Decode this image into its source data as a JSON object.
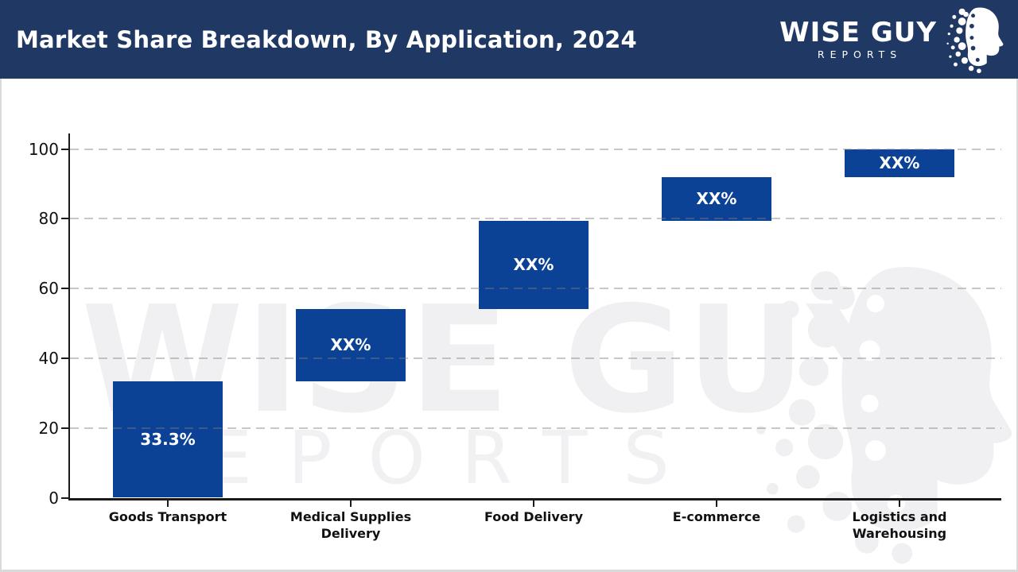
{
  "header": {
    "title": "Market Share Breakdown, By Application, 2024",
    "logo": {
      "wordmark": "WISE GUY",
      "subtext": "REPORTS"
    }
  },
  "watermark": {
    "wordmark": "WISE GUY",
    "subtext": "REPORTS"
  },
  "chart_data": {
    "type": "bar",
    "subtype": "waterfall",
    "title": "Market Share Breakdown, By Application, 2024",
    "xlabel": "",
    "ylabel": "",
    "ylim": [
      0,
      104
    ],
    "yticks": [
      0,
      20,
      40,
      60,
      80,
      100
    ],
    "grid": "horizontal-dashed",
    "legend": "none",
    "bar_color": "#0B4296",
    "categories": [
      "Goods Transport",
      "Medical Supplies\nDelivery",
      "Food Delivery",
      "E-commerce",
      "Logistics and\nWarehousing"
    ],
    "segments": [
      {
        "category": "Goods Transport",
        "start": 0,
        "end": 33.3,
        "label": "33.3%"
      },
      {
        "category": "Medical Supplies Delivery",
        "start": 33.3,
        "end": 54.2,
        "label": "XX%"
      },
      {
        "category": "Food Delivery",
        "start": 54.2,
        "end": 79.4,
        "label": "XX%"
      },
      {
        "category": "E-commerce",
        "start": 79.4,
        "end": 91.9,
        "label": "XX%"
      },
      {
        "category": "Logistics and Warehousing",
        "start": 91.9,
        "end": 100,
        "label": "XX%"
      }
    ]
  },
  "colors": {
    "header_bg": "#1F3864",
    "bar": "#0B4296",
    "grid_dash": "#CFCFCF",
    "axis": "#1A1A1A",
    "watermark": "#F0F0F2",
    "page_border": "#D9D9D9",
    "bar_label_text": "#FFFFFF",
    "tick_text": "#111111"
  }
}
